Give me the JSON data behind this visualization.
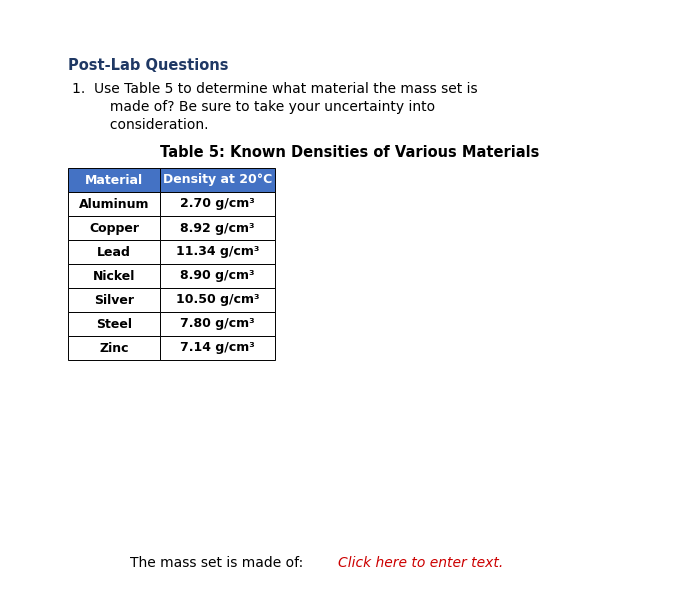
{
  "title_postlab": "Post-Lab Questions",
  "question_line1": "1.  Use Table 5 to determine what material the mass set is",
  "question_line2": "     made of? Be sure to take your uncertainty into",
  "question_line3": "     consideration.",
  "table_title": "Table 5: Known Densities of Various Materials",
  "header": [
    "Material",
    "Density at 20°C"
  ],
  "rows": [
    [
      "Aluminum",
      "2.70 g/cm³"
    ],
    [
      "Copper",
      "8.92 g/cm³"
    ],
    [
      "Lead",
      "11.34 g/cm³"
    ],
    [
      "Nickel",
      "8.90 g/cm³"
    ],
    [
      "Silver",
      "10.50 g/cm³"
    ],
    [
      "Steel",
      "7.80 g/cm³"
    ],
    [
      "Zinc",
      "7.14 g/cm³"
    ]
  ],
  "header_bg": "#4472C4",
  "header_fg": "#FFFFFF",
  "row_bg": "#FFFFFF",
  "row_fg": "#000000",
  "border_color": "#000000",
  "footer_text": "The mass set is made of:  ",
  "footer_click": "Click here to enter text.",
  "footer_text_color": "#000000",
  "footer_click_color": "#CC0000",
  "bg_color": "#FFFFFF",
  "postlab_color": "#1F3864"
}
